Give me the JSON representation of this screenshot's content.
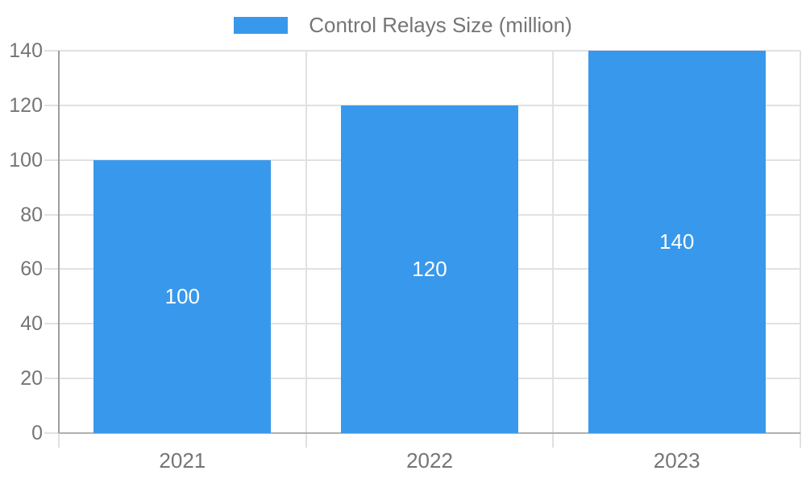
{
  "chart_data": {
    "type": "bar",
    "title": "Control Relays Size (million)",
    "legend": {
      "label": "Control Relays Size (million)",
      "position": "top"
    },
    "categories": [
      "2021",
      "2022",
      "2023"
    ],
    "values": [
      100,
      120,
      140
    ],
    "data_labels": [
      "100",
      "120",
      "140"
    ],
    "xlabel": "",
    "ylabel": "",
    "ylim": [
      0,
      140
    ],
    "yticks": [
      0,
      20,
      40,
      60,
      80,
      100,
      120,
      140
    ],
    "grid": true,
    "colors": {
      "bar": "#3898EC",
      "bar_label_text": "#FFFFFF",
      "axis_text": "#757575",
      "y_axis_line": "#9E9E9E",
      "x_axis_line": "#B0B0B0",
      "gridline": "#E1E1E1",
      "background": "#FFFFFF"
    }
  }
}
